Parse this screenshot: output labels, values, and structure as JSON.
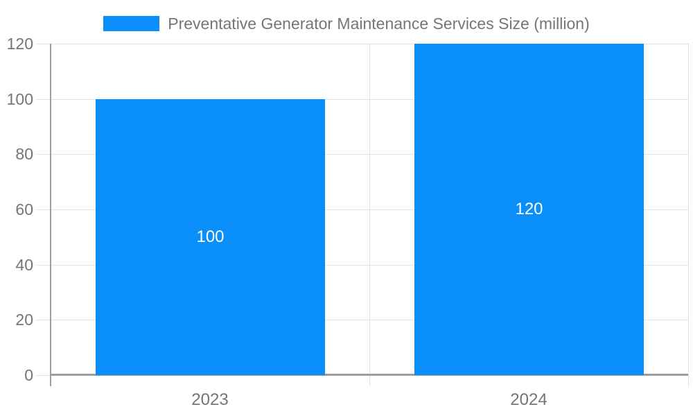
{
  "chart_data": {
    "type": "bar",
    "title": "Preventative Generator Maintenance Services Size (million)",
    "categories": [
      "2023",
      "2024"
    ],
    "series": [
      {
        "name": "Preventative Generator Maintenance Services Size (million)",
        "values": [
          100,
          120
        ]
      }
    ],
    "value_labels": [
      "100",
      "120"
    ],
    "xlabel": "",
    "ylabel": "",
    "ylim": [
      0,
      120
    ],
    "yticks": [
      0,
      20,
      40,
      60,
      80,
      100,
      120
    ],
    "ytick_labels": [
      "0",
      "20",
      "40",
      "60",
      "80",
      "100",
      "120"
    ],
    "grid": true,
    "legend_position": "top-center",
    "colors": {
      "bar": "#0a8ef9",
      "value_label": "#ffffff",
      "axis_line": "#9e9e9e",
      "gridline": "#e2e2e2",
      "tick_label": "#757575",
      "legend_text": "#757575",
      "background": "#ffffff"
    }
  }
}
